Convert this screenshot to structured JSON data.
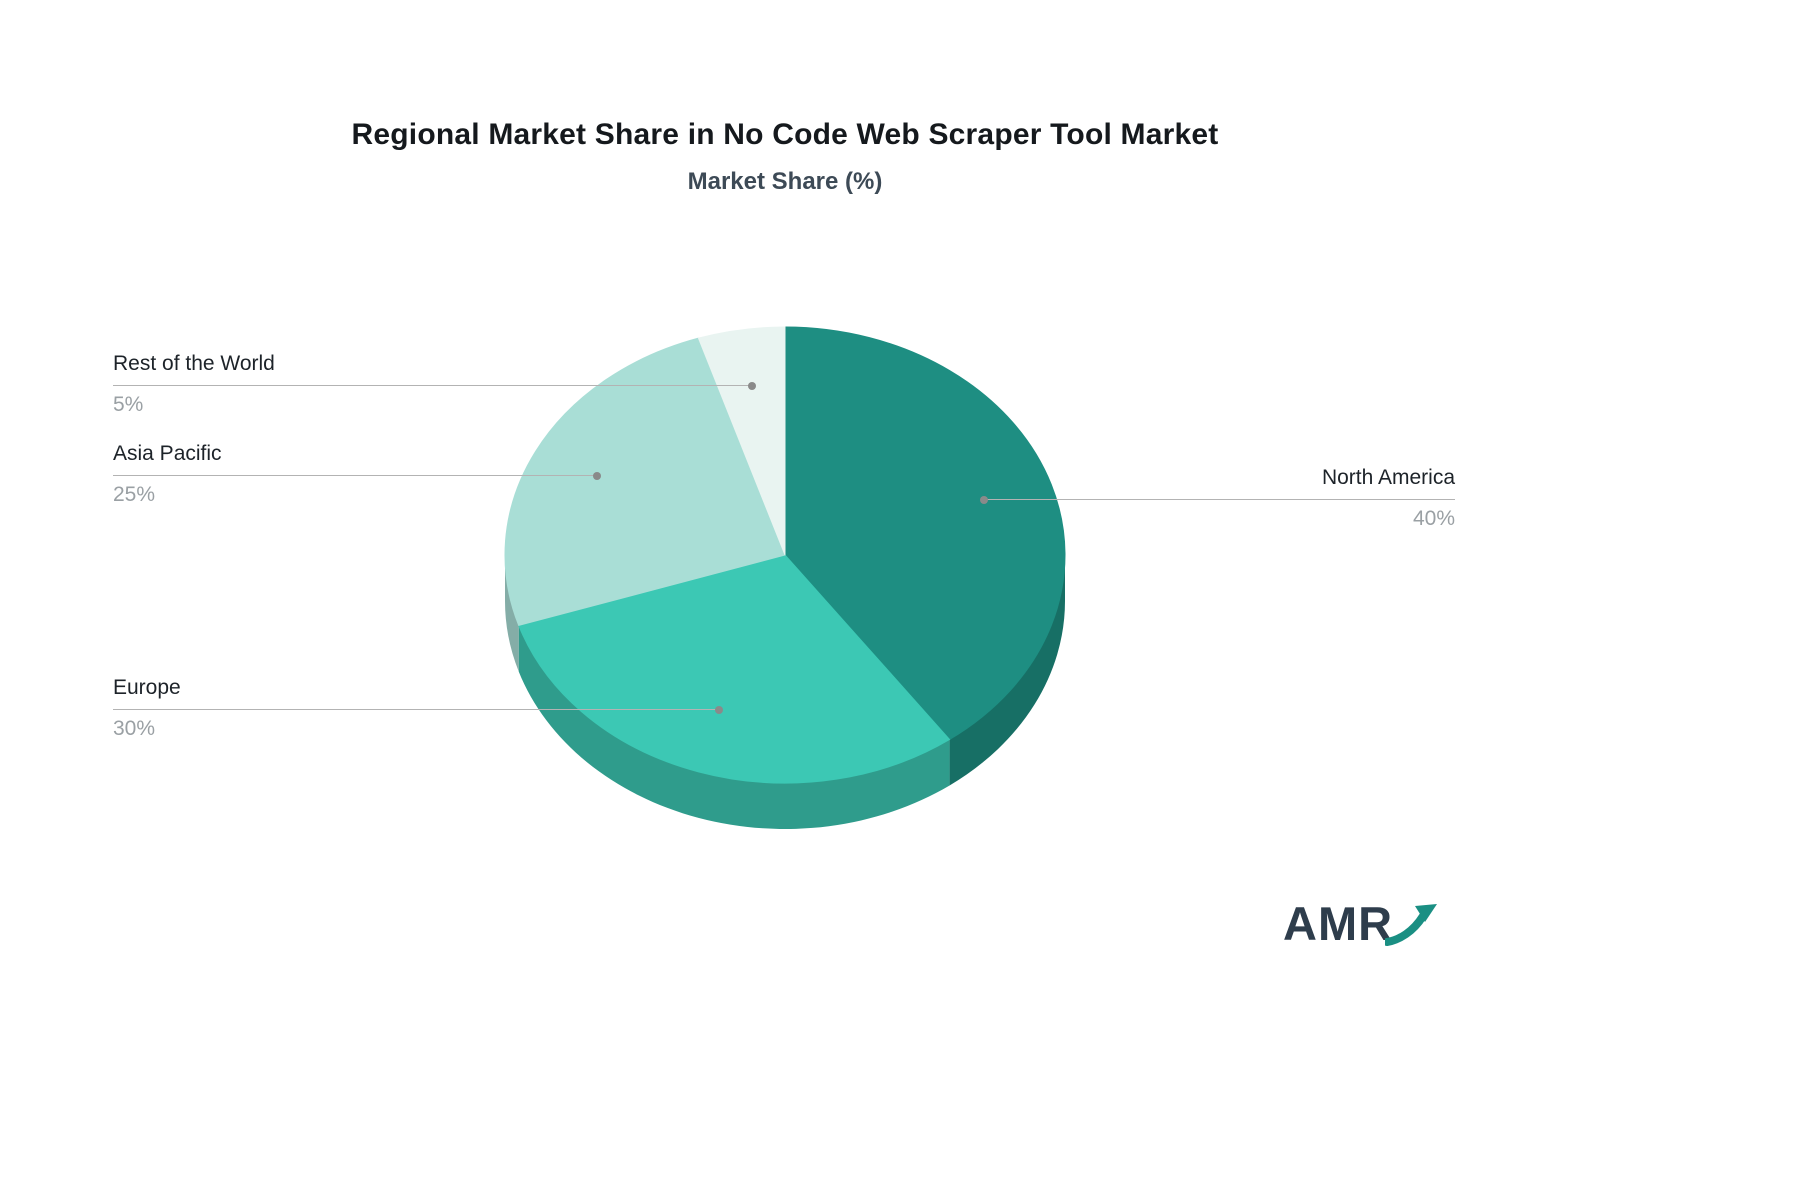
{
  "title": "Regional Market Share in No Code Web Scraper Tool Market",
  "subtitle": "Market Share (%)",
  "logo": {
    "text": "AMR",
    "arrow_color": "#1a8f83",
    "text_color": "#2e3d4c"
  },
  "chart_data": {
    "type": "pie",
    "style": "3d-pie",
    "title": "Regional Market Share in No Code Web Scraper Tool Market",
    "subtitle": "Market Share (%)",
    "unit": "%",
    "start_angle_deg": -90,
    "direction": "clockwise",
    "legend_position": "callout-leader-lines",
    "slices": [
      {
        "label": "North America",
        "value": 40,
        "value_label": "40%",
        "color": "#1e8e82"
      },
      {
        "label": "Europe",
        "value": 30,
        "value_label": "30%",
        "color": "#3cc8b4"
      },
      {
        "label": "Asia Pacific",
        "value": 25,
        "value_label": "25%",
        "color": "#a9ded6"
      },
      {
        "label": "Rest of the World",
        "value": 5,
        "value_label": "5%",
        "color": "#e9f4f1"
      }
    ]
  }
}
